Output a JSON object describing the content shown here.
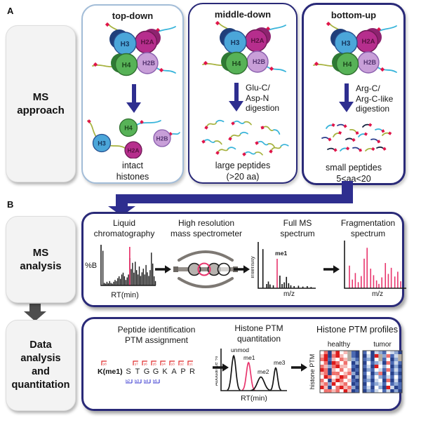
{
  "colors": {
    "navy_border": "#2a2a78",
    "navy_arrow": "#2e2e8f",
    "lightblue_border": "#a3bdd8",
    "gray_arrow": "#4d4d4d",
    "pink": "#e8356d",
    "red_mark": "#e0154a",
    "olive": "#a6b23e",
    "cyan": "#38b4da",
    "black": "#141414",
    "h3_fill": "#4ba6d9",
    "h3_back": "#1f3f7a",
    "h2a_fill": "#b62e8d",
    "h2a_back": "#8e2370",
    "h4_fill": "#57b257",
    "h4_back": "#2f7a34",
    "h2b_fill": "#c89fd8",
    "ion_red": "#e02a2a",
    "ion_blue": "#3a3ad0"
  },
  "panel_a": {
    "label": "A",
    "sidebar_lines": [
      "MS",
      "approach"
    ],
    "histones": [
      "H3",
      "H2A",
      "H4",
      "H2B"
    ],
    "top_down": {
      "title": "top-down",
      "caption_lines": [
        "intact",
        "histones"
      ]
    },
    "middle_down": {
      "title": "middle-down",
      "digestion_lines": [
        "Glu-C/",
        "Asp-N",
        "digestion"
      ],
      "caption_lines": [
        "large peptides",
        "(>20 aa)"
      ]
    },
    "bottom_up": {
      "title": "bottom-up",
      "digestion_lines": [
        "Arg-C/",
        "Arg-C-like",
        "digestion"
      ],
      "caption_lines": [
        "small peptides",
        "5<aa<20"
      ]
    }
  },
  "panel_b": {
    "label": "B",
    "sidebar_ms_lines": [
      "MS",
      "analysis"
    ],
    "sidebar_data_lines": [
      "Data",
      "analysis",
      "and",
      "quantitation"
    ],
    "lc": {
      "title_lines": [
        "Liquid",
        "chromatography"
      ],
      "ylabel": "%B",
      "xlabel": "RT(min)",
      "profile": [
        0.95,
        0.07,
        0.05,
        0.1,
        0.06,
        0.12,
        0.07,
        0.05,
        0.1,
        0.15,
        0.12,
        0.2,
        0.25,
        0.18,
        0.3,
        0.35,
        0.25,
        0.15,
        0.22,
        0.3,
        0.75,
        0.45,
        0.62,
        0.35,
        0.65,
        0.42,
        0.3,
        0.52,
        0.26,
        0.36,
        0.46,
        0.3,
        0.56,
        0.36,
        0.26,
        0.42,
        0.9,
        0.6,
        0.25,
        0.12
      ],
      "redline_index": 20
    },
    "spectrometer": {
      "title_lines": [
        "High resolution",
        "mass spectrometer"
      ]
    },
    "full_ms": {
      "title_lines": [
        "Full MS",
        "spectrum"
      ],
      "ylabel": "Intensity",
      "xlabel": "m/z",
      "peak_label": "me1",
      "peaks": [
        {
          "x": 0.05,
          "h": 0.93,
          "pink": false
        },
        {
          "x": 0.12,
          "h": 0.1,
          "pink": false
        },
        {
          "x": 0.15,
          "h": 0.16,
          "pink": false
        },
        {
          "x": 0.18,
          "h": 0.09,
          "pink": false
        },
        {
          "x": 0.24,
          "h": 0.07,
          "pink": false
        },
        {
          "x": 0.31,
          "h": 0.7,
          "pink": true,
          "label": "me1"
        },
        {
          "x": 0.36,
          "h": 0.3,
          "pink": false
        },
        {
          "x": 0.4,
          "h": 0.1,
          "pink": false
        },
        {
          "x": 0.44,
          "h": 0.14,
          "pink": false
        },
        {
          "x": 0.48,
          "h": 0.27,
          "pink": false
        },
        {
          "x": 0.52,
          "h": 0.12,
          "pink": false
        },
        {
          "x": 0.56,
          "h": 0.07,
          "pink": false
        },
        {
          "x": 0.62,
          "h": 0.05,
          "pink": false
        },
        {
          "x": 0.7,
          "h": 0.06,
          "pink": false
        },
        {
          "x": 0.78,
          "h": 0.04,
          "pink": false
        },
        {
          "x": 0.86,
          "h": 0.05,
          "pink": false
        },
        {
          "x": 0.93,
          "h": 0.03,
          "pink": false
        }
      ]
    },
    "frag": {
      "title_lines": [
        "Fragmentation",
        "spectrum"
      ],
      "xlabel": "m/z",
      "peaks": [
        {
          "x": 0.05,
          "h": 0.52
        },
        {
          "x": 0.1,
          "h": 0.2
        },
        {
          "x": 0.15,
          "h": 0.35
        },
        {
          "x": 0.2,
          "h": 0.14
        },
        {
          "x": 0.25,
          "h": 0.28
        },
        {
          "x": 0.3,
          "h": 0.68
        },
        {
          "x": 0.35,
          "h": 0.93
        },
        {
          "x": 0.41,
          "h": 0.45
        },
        {
          "x": 0.46,
          "h": 0.3
        },
        {
          "x": 0.51,
          "h": 0.18
        },
        {
          "x": 0.55,
          "h": 0.1
        },
        {
          "x": 0.6,
          "h": 0.25
        },
        {
          "x": 0.66,
          "h": 0.58
        },
        {
          "x": 0.71,
          "h": 0.33
        },
        {
          "x": 0.76,
          "h": 0.47
        },
        {
          "x": 0.82,
          "h": 0.27
        },
        {
          "x": 0.87,
          "h": 0.38
        },
        {
          "x": 0.92,
          "h": 0.16
        }
      ]
    },
    "pid": {
      "title_lines": [
        "Peptide identification",
        "PTM assignment"
      ],
      "residues": [
        "K(me1)",
        "S",
        "T",
        "G",
        "G",
        "K",
        "A",
        "P",
        "R"
      ],
      "y_ions": [
        "y8",
        "y7",
        "y6",
        "y5",
        "y4",
        "y3",
        "y2",
        "y1"
      ],
      "b_ions": [
        "b2",
        "b3",
        "b4",
        "b5"
      ]
    },
    "quant": {
      "title_lines": [
        "Histone PTM",
        "quantitation"
      ],
      "ylabel": "Abudance %",
      "xlabel": "RT(min)",
      "peaks": [
        {
          "label": "unmod",
          "x": 0.16,
          "h": 0.92,
          "sigma": 0.035,
          "pink": false
        },
        {
          "label": "me1",
          "x": 0.4,
          "h": 0.74,
          "sigma": 0.035,
          "pink": true
        },
        {
          "label": "me2",
          "x": 0.6,
          "h": 0.36,
          "sigma": 0.055,
          "pink": false
        },
        {
          "label": "me3",
          "x": 0.84,
          "h": 0.6,
          "sigma": 0.03,
          "pink": false
        }
      ]
    },
    "profiles": {
      "title": "Histone PTM profiles",
      "col_labels": [
        "healthy",
        "tumor"
      ],
      "row_label": "histone PTM",
      "palette": {
        "R": "#dd1c1c",
        "r": "#f0716d",
        "p": "#f7b8b4",
        "W": "#ffffff",
        "c": "#ccd9ec",
        "b": "#8fa9d4",
        "B": "#4a69b2",
        "N": "#27418c",
        "G": "#b3aca2"
      },
      "healthy_rows": [
        "WrNpRWpGBN",
        "pRNrRpWGBN",
        "rRBpWrpGbB",
        "WrNRrWrWNb",
        "rpbrRppWBN",
        "RrNpWrWpNB",
        "prNrrWprbN",
        "WRrWpRrWNb",
        "rWNpRrWpBN",
        "prbRWprWNB",
        "RpNWrRprbN",
        "WrrprWRpNB"
      ],
      "tumor_rows": [
        "BWNcbBWcbN",
        "NcNRGbrBcG",
        "BbNWGBWNbG",
        "NWBbcNrBcB",
        "BcNRWbWNbN",
        "NbBWcBrBcB",
        "BWNbrNWNbN",
        "NcBWbBcBWB",
        "BbNcWNrNcN",
        "NWBbcBWBbB",
        "BcNWbNRcNB",
        "NbBcWBcNbN"
      ]
    }
  }
}
